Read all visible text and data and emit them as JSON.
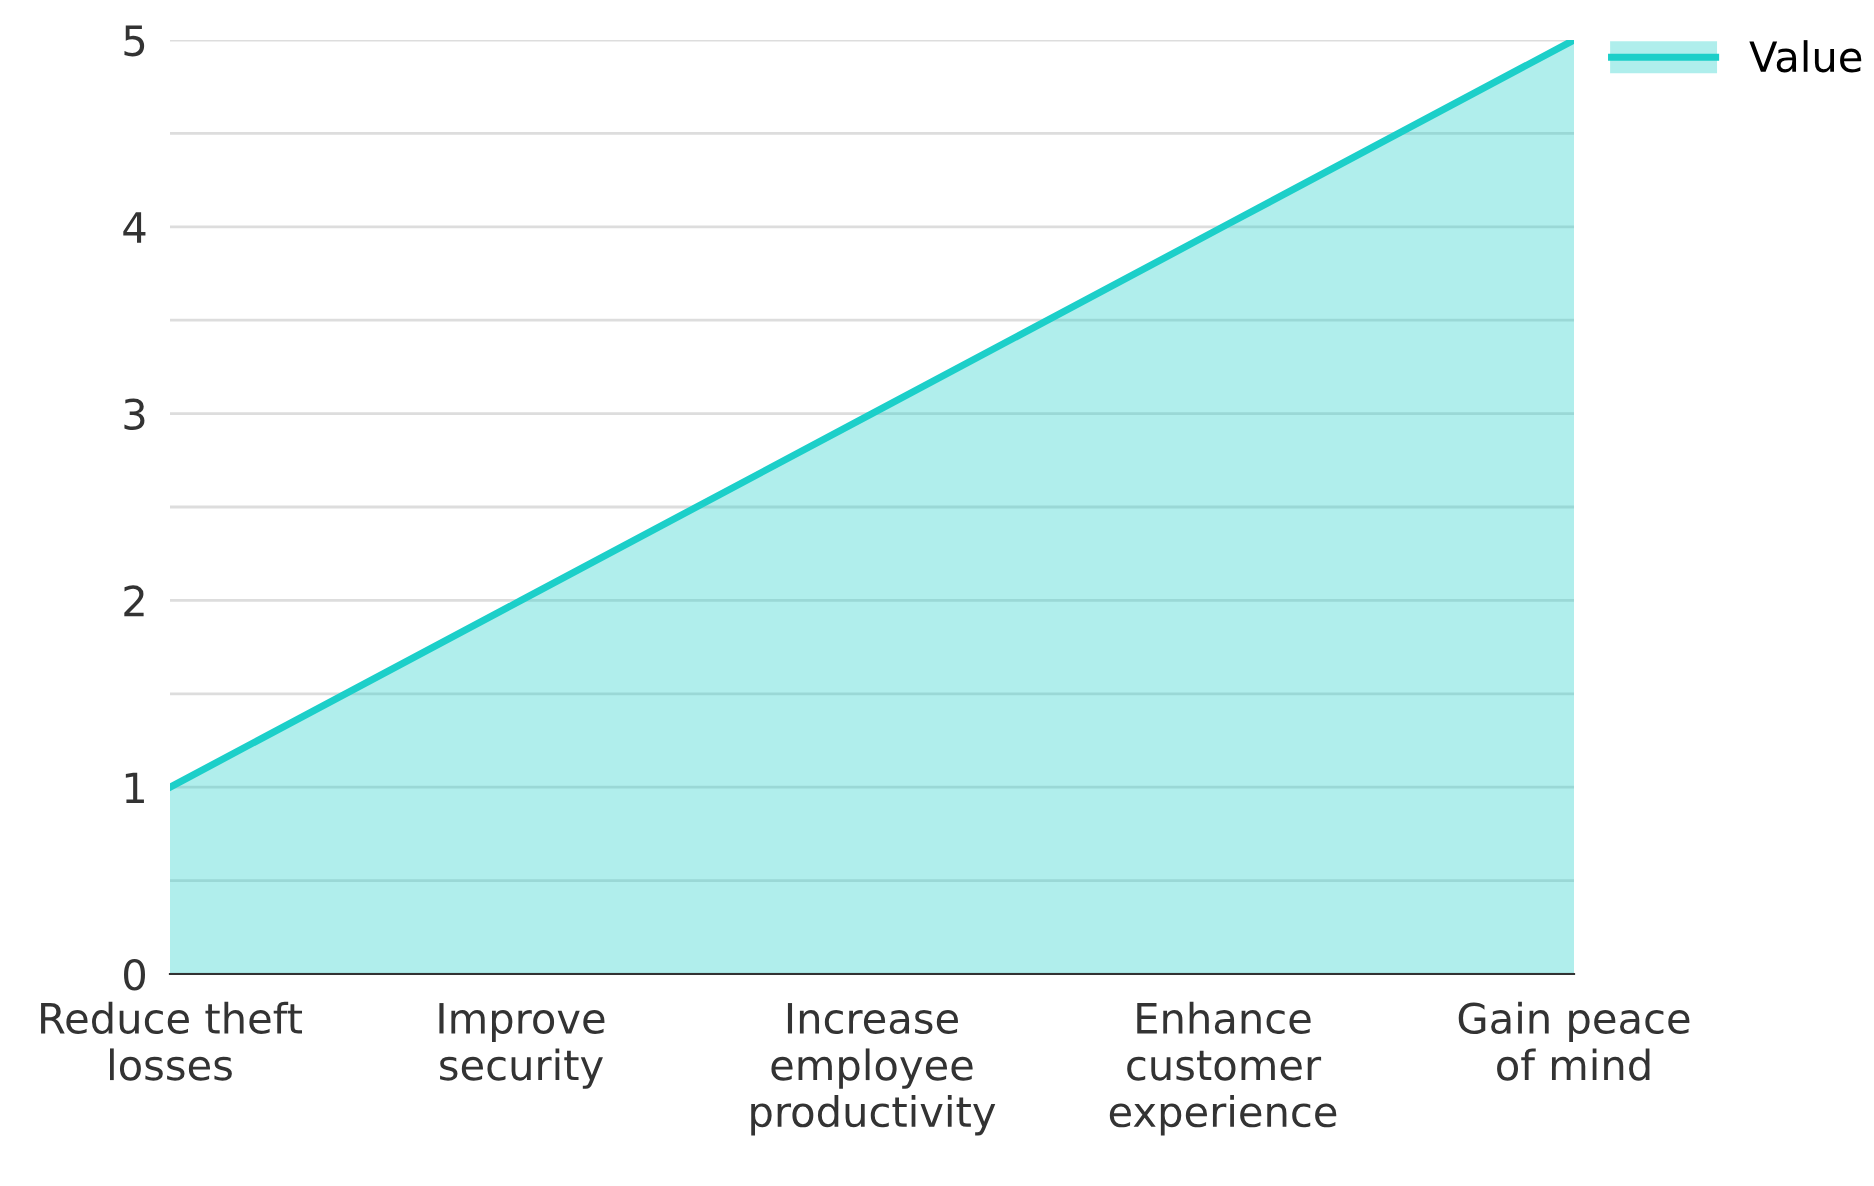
{
  "chart_data": {
    "type": "area",
    "categories": [
      "Reduce theft\nlosses",
      "Improve\nsecurity",
      "Increase\nemployee\nproductivity",
      "Enhance\ncustomer\nexperience",
      "Gain peace\nof mind"
    ],
    "series": [
      {
        "name": "Value",
        "color": "#1ccfc9",
        "values": [
          1,
          2,
          3,
          4,
          5
        ]
      }
    ],
    "ylim": [
      0,
      5
    ],
    "yticks": [
      0,
      {
        "value": 0.5,
        "label": null
      },
      1,
      {
        "value": 1.5,
        "label": null
      },
      2,
      {
        "value": 2.5,
        "label": null
      },
      3,
      {
        "value": 3.5,
        "label": null
      },
      4,
      {
        "value": 4.5,
        "label": null
      },
      5
    ],
    "grid": "y",
    "legend": "top right"
  }
}
